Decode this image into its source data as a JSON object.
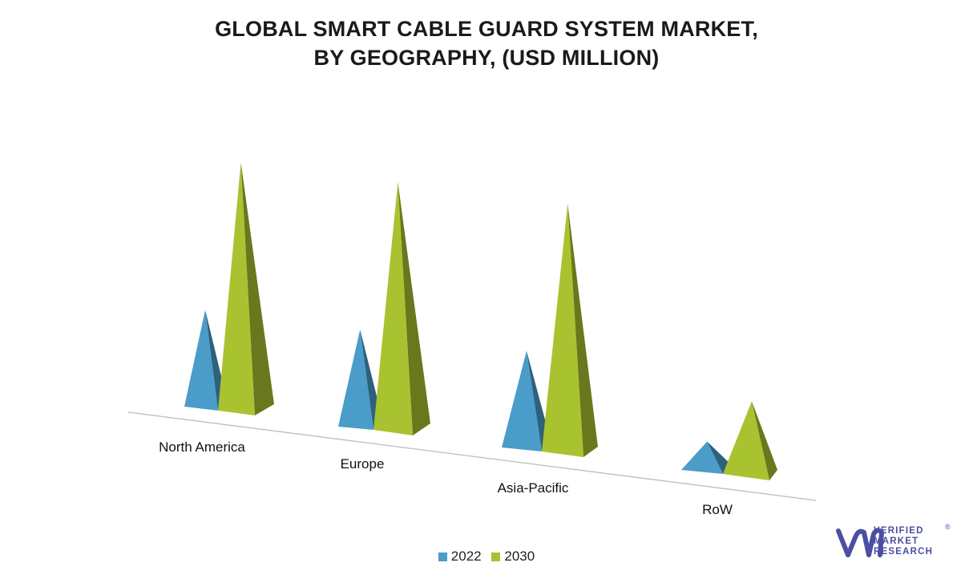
{
  "title": {
    "line1": "GLOBAL SMART CABLE GUARD SYSTEM MARKET,",
    "line2": "BY GEOGRAPHY, (USD MILLION)"
  },
  "chart_data": {
    "type": "bar",
    "subtype": "3d-pyramid",
    "title": "GLOBAL SMART CABLE GUARD SYSTEM MARKET, BY GEOGRAPHY, (USD MILLION)",
    "categories": [
      "North America",
      "Europe",
      "Asia-Pacific",
      "RoW"
    ],
    "series": [
      {
        "name": "2022",
        "values": [
          130,
          130,
          130,
          40
        ],
        "color": "#4a9cc9"
      },
      {
        "name": "2030",
        "values": [
          330,
          330,
          330,
          100
        ],
        "color": "#a9c22f"
      }
    ],
    "ylim": [
      0,
      340
    ],
    "grid": false,
    "legend": "bottom"
  },
  "legend": {
    "items": [
      "2022",
      "2030"
    ]
  },
  "logo": {
    "brand_line1": "VERIFIED",
    "brand_line2": "MARKET",
    "brand_line3": "RESEARCH",
    "registered": "®"
  }
}
